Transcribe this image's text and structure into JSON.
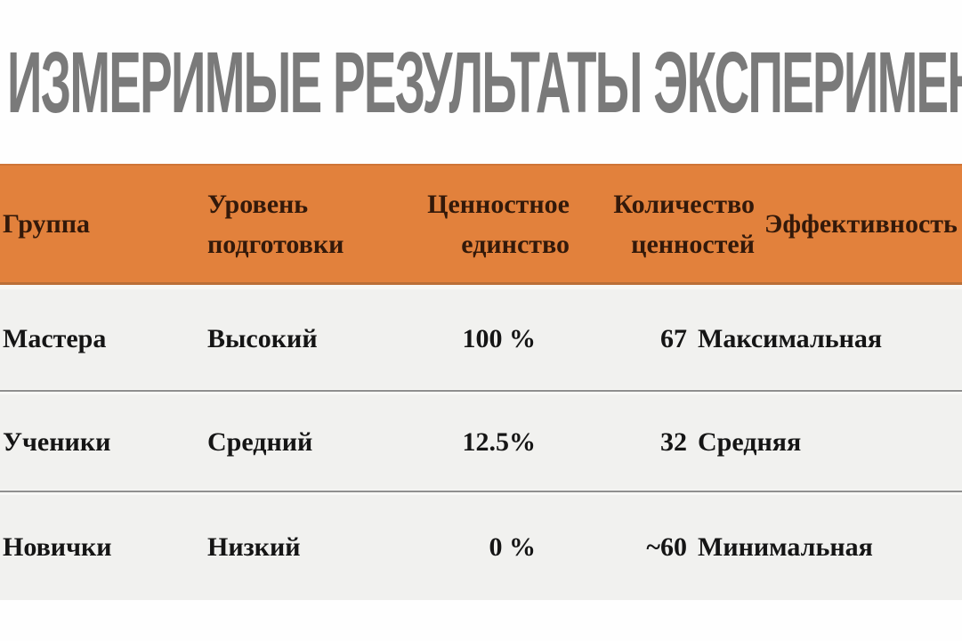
{
  "slide": {
    "title": "ИЗМЕРИМЫЕ РЕЗУЛЬТАТЫ ЭКСПЕРИМЕНТ"
  },
  "table": {
    "columns": [
      "Группа",
      "Уровень подготовки",
      "Ценностное единство",
      "Количество ценностей",
      "Эффективность"
    ],
    "rows": [
      {
        "group": "Мастера",
        "training_level": "Высокий",
        "value_unity": "100 %",
        "values_count": "67",
        "effectiveness": "Максимальная"
      },
      {
        "group": "Ученики",
        "training_level": "Средний",
        "value_unity": "12.5%",
        "values_count": "32",
        "effectiveness": "Средняя"
      },
      {
        "group": "Новички",
        "training_level": "Низкий",
        "value_unity": "0 %",
        "values_count": "~60",
        "effectiveness": "Минимальная"
      }
    ]
  },
  "colors": {
    "header_bg": "#e2813c",
    "header_text": "#33190a",
    "row_bg": "#f1f1ef",
    "divider_line": "#8f8f8f",
    "title_text": "#7a7a7a",
    "body_text": "#151515"
  }
}
